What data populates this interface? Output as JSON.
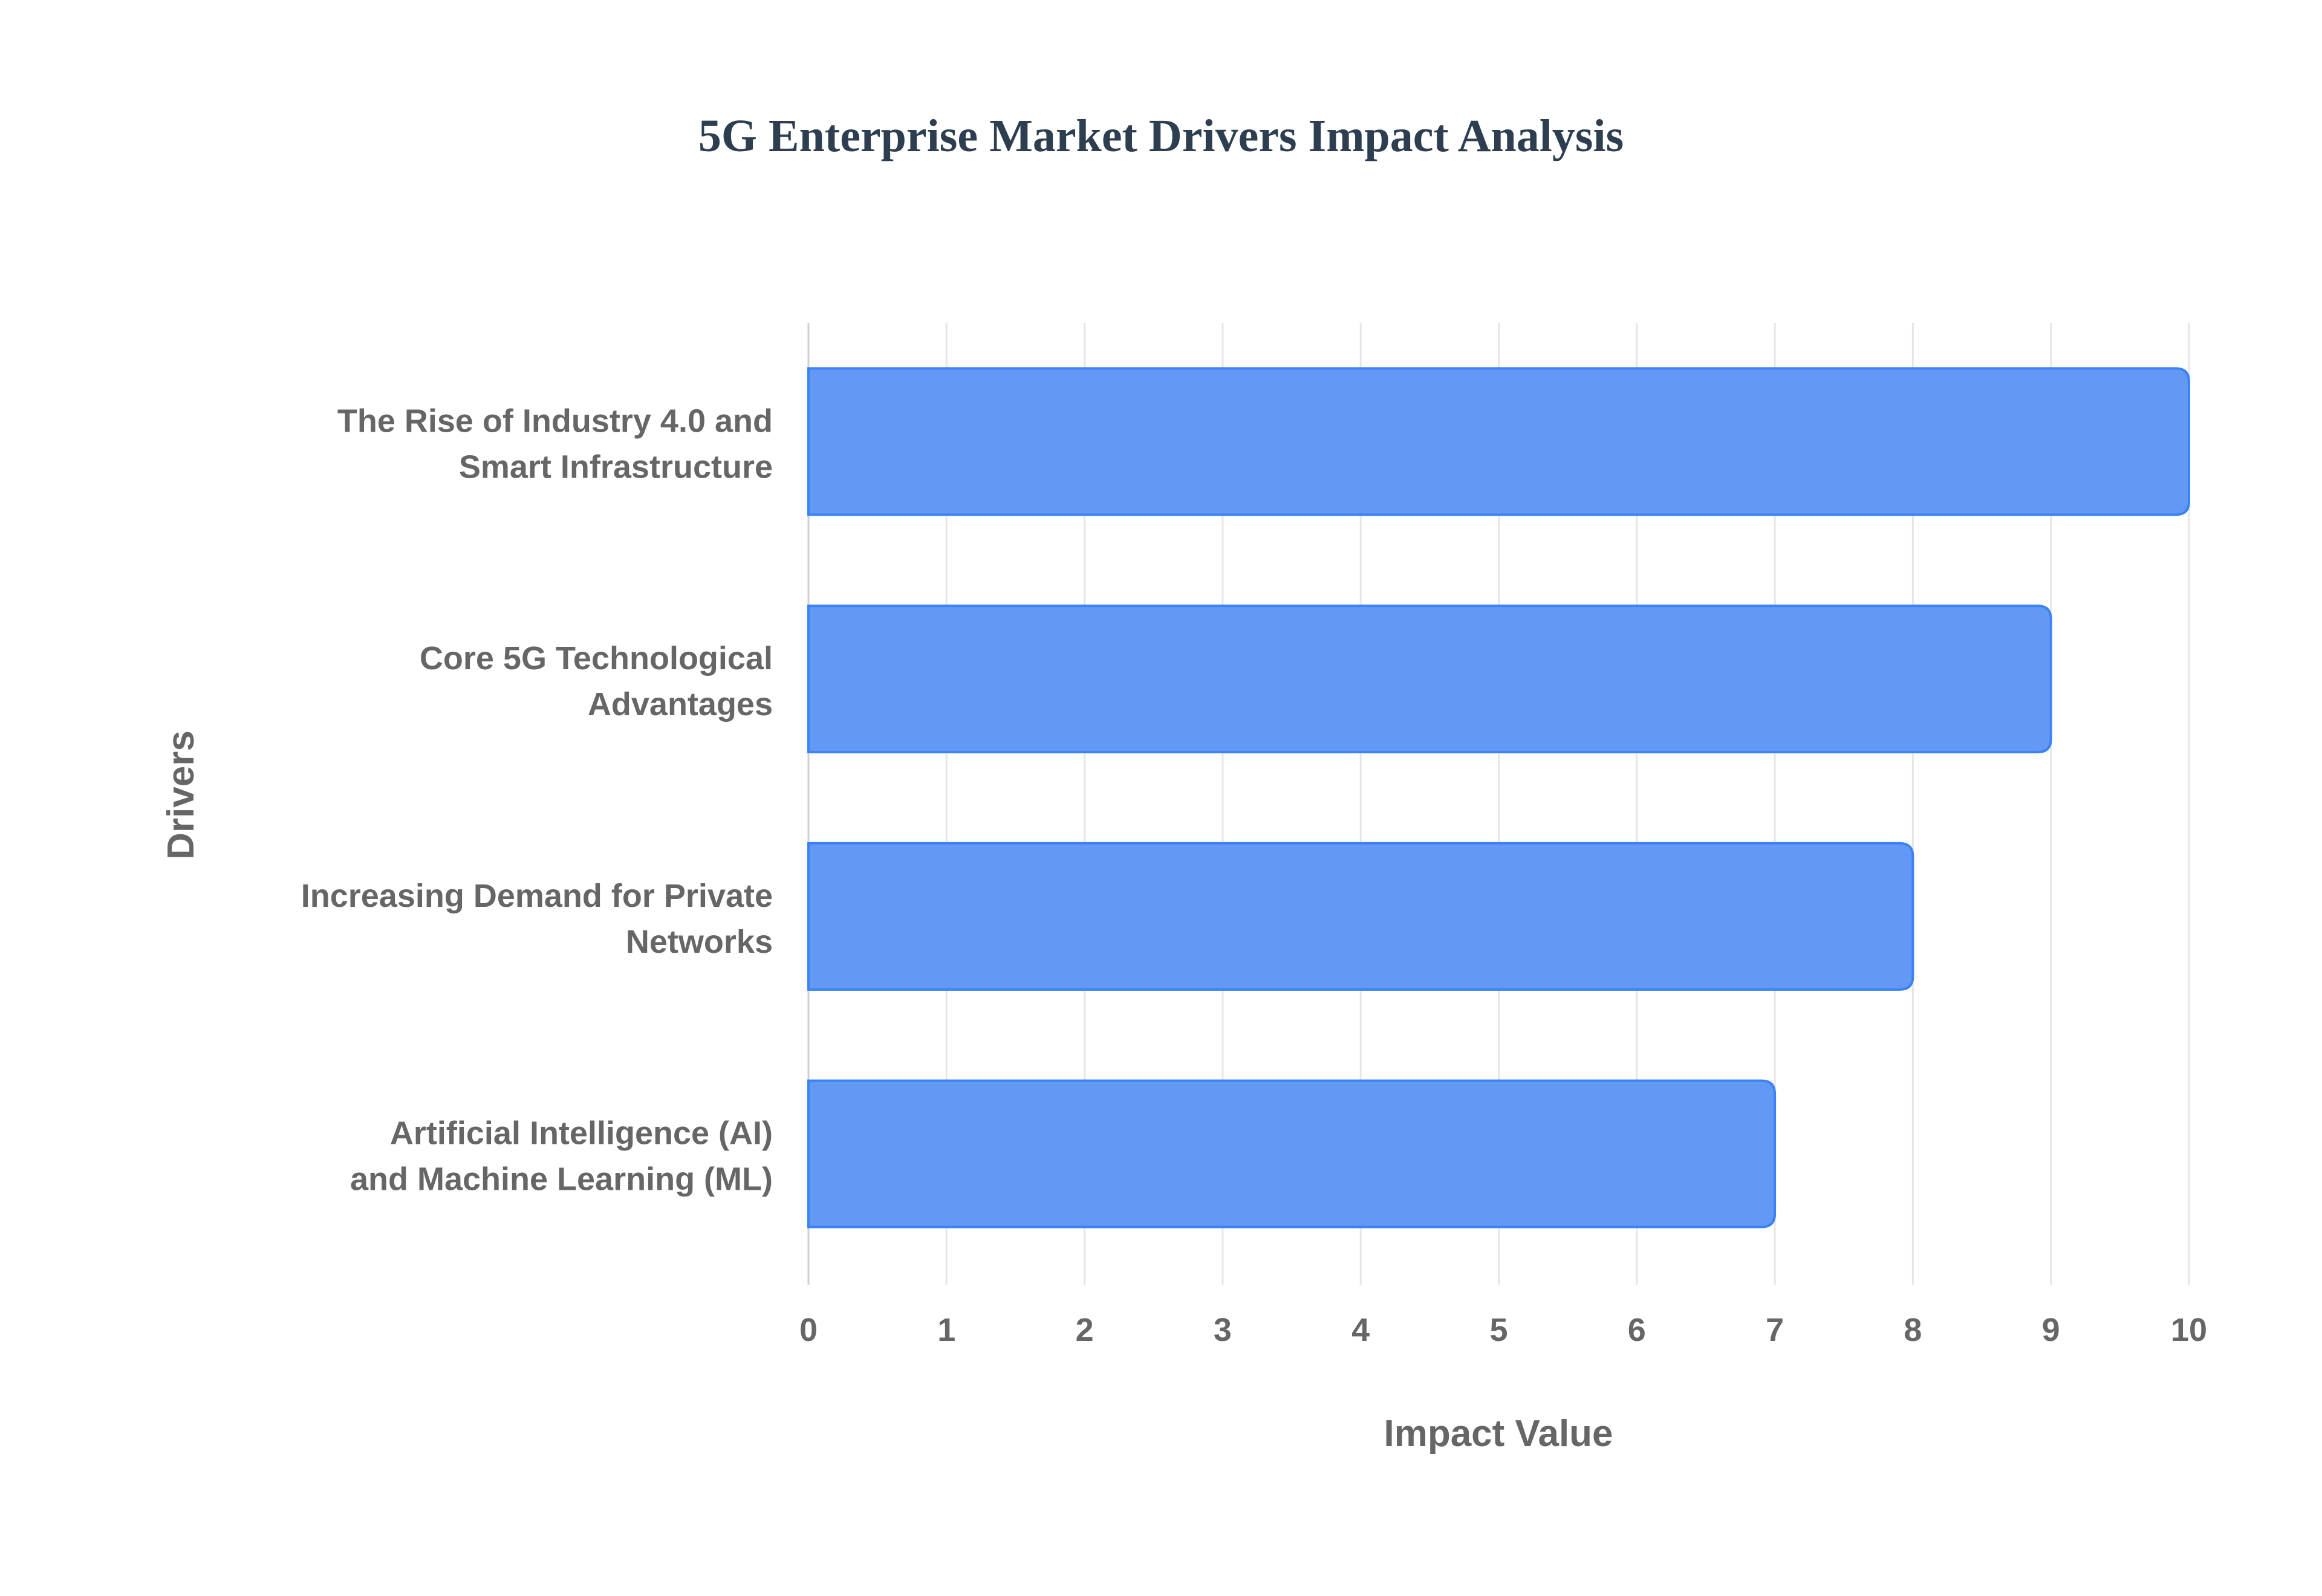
{
  "chart_data": {
    "type": "bar",
    "orientation": "horizontal",
    "title": "5G Enterprise Market Drivers Impact Analysis",
    "xlabel": "Impact Value",
    "ylabel": "Drivers",
    "categories": [
      [
        "The Rise of Industry 4.0 and",
        "Smart Infrastructure"
      ],
      [
        "Core 5G Technological",
        "Advantages"
      ],
      [
        "Increasing Demand for Private",
        "Networks"
      ],
      [
        "Artificial Intelligence (AI)",
        "and Machine Learning (ML)"
      ]
    ],
    "values": [
      10,
      9,
      8,
      7
    ],
    "xlim": [
      0,
      10
    ],
    "xticks": [
      "0",
      "1",
      "2",
      "3",
      "4",
      "5",
      "6",
      "7",
      "8",
      "9",
      "10"
    ],
    "grid": true,
    "legend": "none",
    "colors": {
      "fill": "#6399f5",
      "border": "#3b82f6",
      "grid": "#e6e6e6"
    }
  }
}
